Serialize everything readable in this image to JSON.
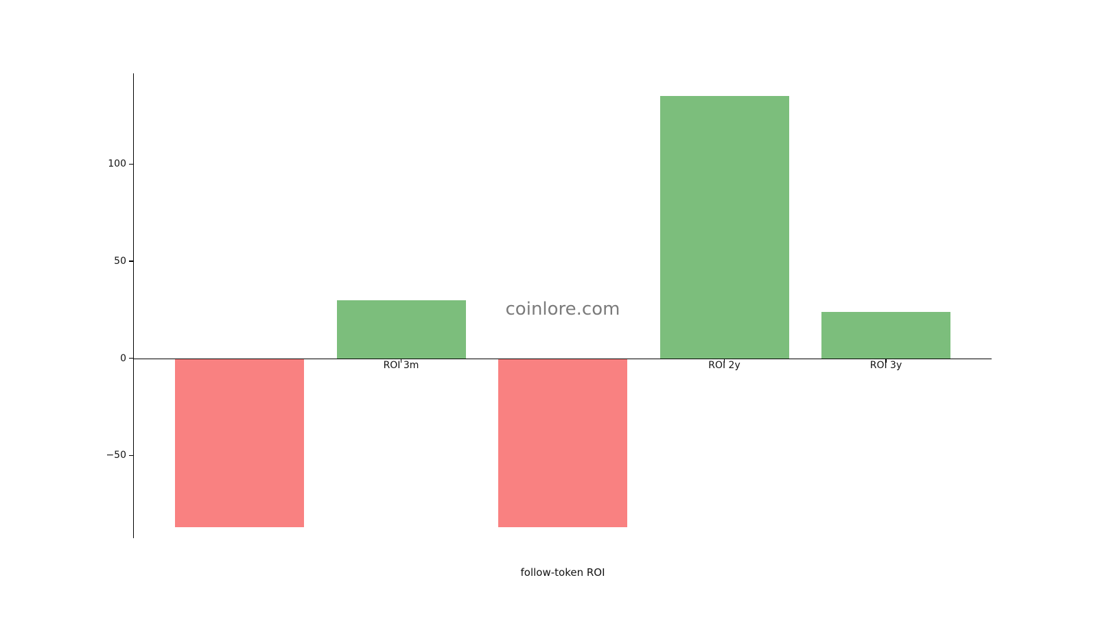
{
  "watermark": "coinlore.com",
  "chart_data": {
    "type": "bar",
    "title": "",
    "xlabel": "follow-token ROI",
    "ylabel": "",
    "categories": [
      "",
      "ROI 3m",
      "",
      "ROI 2y",
      "ROI 3y"
    ],
    "values": [
      -87,
      30,
      -87,
      135,
      24
    ],
    "positive_color": "#7cbe7c",
    "negative_color": "#f98181",
    "y_ticks": [
      100,
      50,
      0,
      -50
    ],
    "ylim": [
      -92,
      147
    ],
    "grid": false,
    "legend_position": "none",
    "background_color": "#ffffff",
    "axis_color": "#000000",
    "watermark": "coinlore.com",
    "watermark_color": "#7b7b7b",
    "notes_visible_only": "labels of the two negative bars are hidden behind the bars"
  }
}
